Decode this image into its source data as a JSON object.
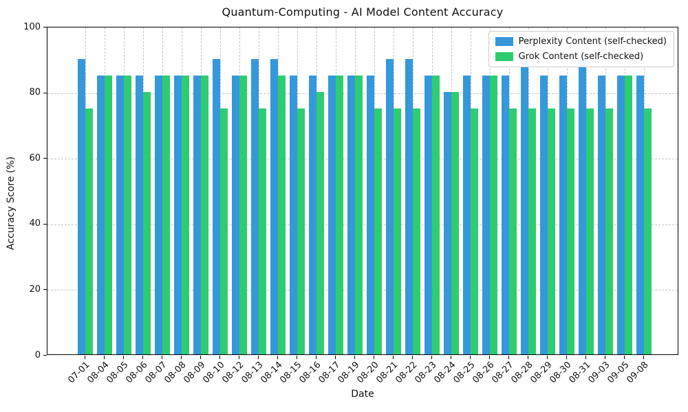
{
  "chart_data": {
    "type": "bar",
    "title": "Quantum-Computing - AI Model Content Accuracy",
    "xlabel": "Date",
    "ylabel": "Accuracy Score (%)",
    "ylim": [
      0,
      100
    ],
    "yticks": [
      0,
      20,
      40,
      60,
      80,
      100
    ],
    "grid": true,
    "legend_position": "upper right",
    "categories": [
      "07-01",
      "08-04",
      "08-05",
      "08-06",
      "08-07",
      "08-08",
      "08-09",
      "08-10",
      "08-12",
      "08-13",
      "08-14",
      "08-15",
      "08-16",
      "08-17",
      "08-19",
      "08-20",
      "08-21",
      "08-22",
      "08-23",
      "08-24",
      "08-25",
      "08-26",
      "08-27",
      "08-28",
      "08-29",
      "08-30",
      "08-31",
      "09-03",
      "09-05",
      "09-08"
    ],
    "series": [
      {
        "name": "Perplexity Content (self-checked)",
        "color": "#3498db",
        "values": [
          90,
          85,
          85,
          85,
          85,
          85,
          85,
          90,
          85,
          90,
          90,
          85,
          85,
          85,
          85,
          85,
          90,
          90,
          85,
          80,
          85,
          85,
          85,
          90,
          85,
          85,
          90,
          85,
          85,
          85
        ]
      },
      {
        "name": "Grok Content (self-checked)",
        "color": "#2ecc71",
        "values": [
          75,
          85,
          85,
          80,
          85,
          85,
          85,
          75,
          85,
          75,
          85,
          75,
          80,
          85,
          85,
          75,
          75,
          75,
          85,
          80,
          75,
          85,
          75,
          75,
          75,
          75,
          75,
          75,
          85,
          75
        ]
      }
    ]
  }
}
